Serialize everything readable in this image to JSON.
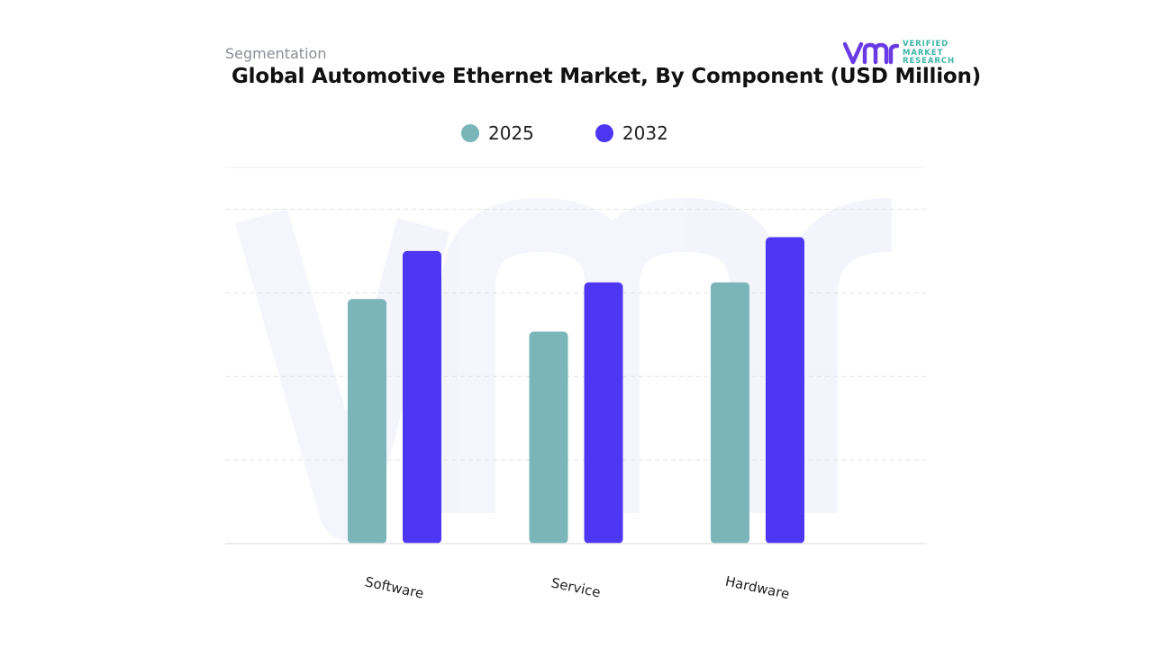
{
  "header": {
    "segment_label": "Segmentation",
    "title": "Global Automotive Ethernet Market, By Component (USD Million)"
  },
  "brand": {
    "logo_mark": "vmr",
    "logo_lines": [
      "VERIFIED",
      "MARKET",
      "RESEARCH"
    ],
    "logo_color": "#6a3be4",
    "logo_text_color": "#3cb5a6"
  },
  "chart_data": {
    "type": "bar",
    "title": "Global Automotive Ethernet Market, By Component (USD Million)",
    "categories": [
      "Software",
      "Service",
      "Hardware"
    ],
    "series": [
      {
        "name": "2025",
        "color": "#7ab5b9",
        "values": [
          58.5,
          50.7,
          62.5
        ]
      },
      {
        "name": "2032",
        "color": "#4e36f5",
        "values": [
          70.0,
          62.5,
          73.3
        ]
      }
    ],
    "ylim": [
      0,
      90
    ],
    "grid": true,
    "legend": "top-center",
    "y_tick_labels_visible": false
  }
}
